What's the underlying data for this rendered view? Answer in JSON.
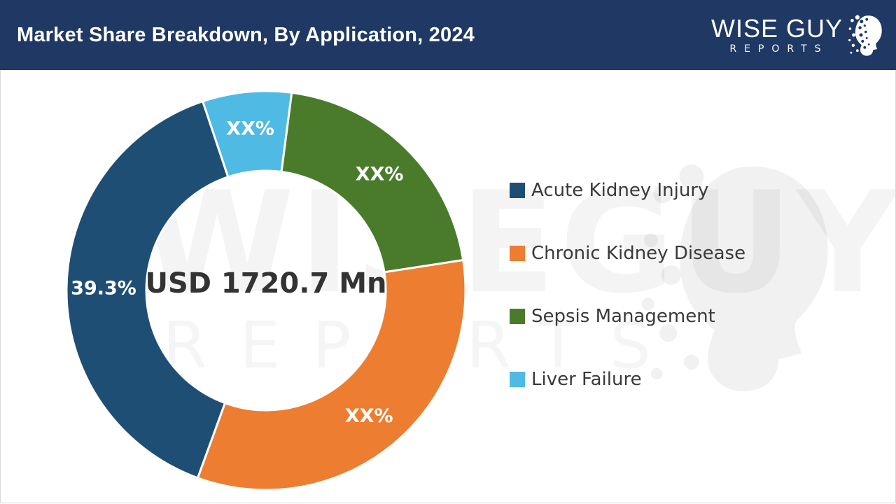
{
  "header": {
    "title": "Market Share Breakdown, By Application, 2024",
    "bg_color": "#1F3864",
    "logo": {
      "wordmark": "WISE GUY",
      "reports": "REPORTS"
    }
  },
  "chart_data": {
    "type": "pie",
    "subtype": "donut",
    "title": "Market Share Breakdown, By Application, 2024",
    "center_label": "USD 1720.7 Mn",
    "start_angle_deg": -18.5,
    "inner_radius_ratio": 0.6,
    "legend_position": "right",
    "segments": [
      {
        "id": "liver-failure",
        "name": "Liver Failure",
        "label": "XX%",
        "value_pct": 7.2,
        "color": "#4FBAE4"
      },
      {
        "id": "sepsis-management",
        "name": "Sepsis Management",
        "label": "XX%",
        "value_pct": 20.5,
        "color": "#4A7B2B"
      },
      {
        "id": "chronic-kidney-disease",
        "name": "Chronic Kidney Disease",
        "label": "XX%",
        "value_pct": 33.0,
        "color": "#ED7D31"
      },
      {
        "id": "acute-kidney-injury",
        "name": "Acute Kidney Injury",
        "label": "39.3%",
        "value_pct": 39.3,
        "color": "#1F4E74"
      }
    ]
  },
  "legend": {
    "items": [
      {
        "label": "Acute Kidney Injury",
        "color": "#1F4E74"
      },
      {
        "label": "Chronic Kidney Disease",
        "color": "#ED7D31"
      },
      {
        "label": "Sepsis Management",
        "color": "#4A7B2B"
      },
      {
        "label": "Liver Failure",
        "color": "#4FBAE4"
      }
    ]
  },
  "watermark": {
    "line1": "WISEGUY",
    "line2": "REPORTS"
  },
  "colors": {
    "header_bg": "#1F3864",
    "center_text": "#333333",
    "frame_border": "#d8d8d8"
  }
}
